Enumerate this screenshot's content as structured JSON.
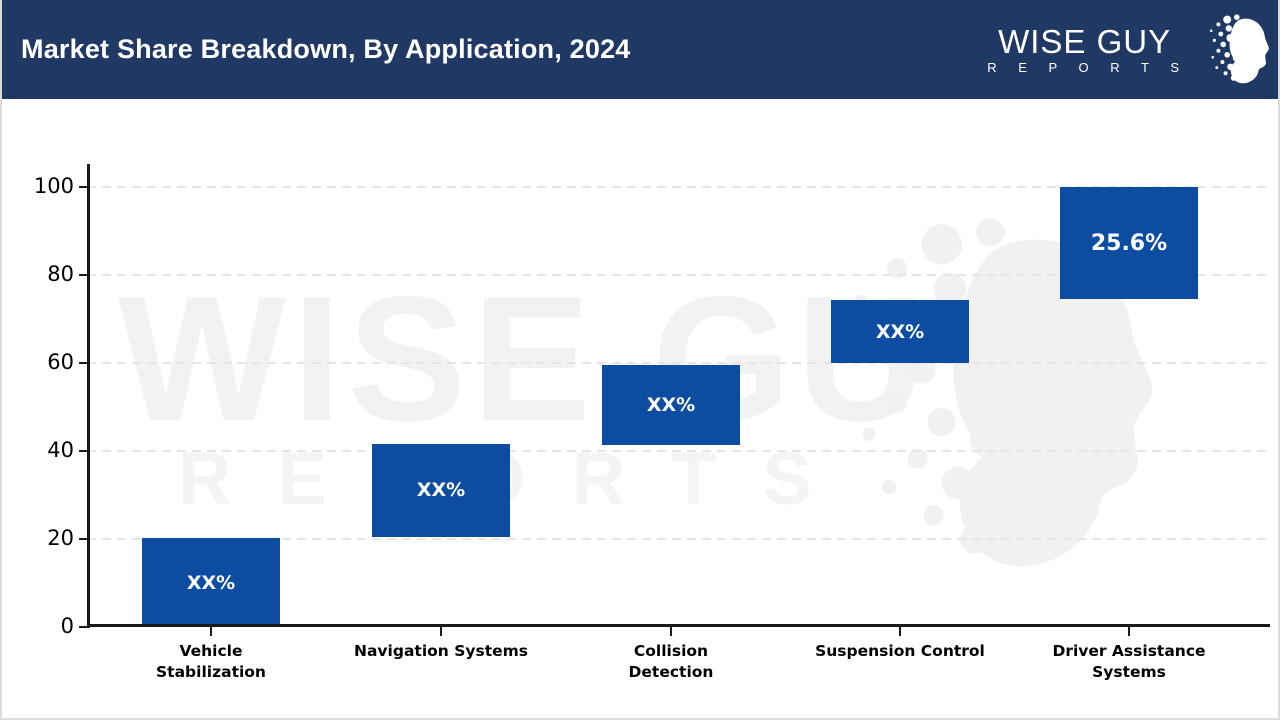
{
  "header": {
    "title": "Market Share Breakdown, By Application, 2024",
    "bg_color": "#203864",
    "logo": {
      "line1": "WISE GUY",
      "line2": "R E P O R T S"
    }
  },
  "watermark": {
    "line1": "WISE GUY",
    "line2": "REPORTS"
  },
  "chart_data": {
    "type": "bar",
    "subtype": "floating-waterfall",
    "title": "Market Share Breakdown, By Application, 2024",
    "xlabel": "",
    "ylabel": "",
    "ylim": [
      0,
      100
    ],
    "yticks": [
      0,
      20,
      40,
      60,
      80,
      100
    ],
    "grid": "horizontal-dashed",
    "bar_color": "#0c4da2",
    "bar_label_color": "#ffffff",
    "categories": [
      "Vehicle Stabilization",
      "Navigation Systems",
      "Collision Detection",
      "Suspension Control",
      "Driver Assistance Systems"
    ],
    "category_label_lines": [
      [
        "Vehicle",
        "Stabilization"
      ],
      [
        "Navigation Systems"
      ],
      [
        "Collision",
        "Detection"
      ],
      [
        "Suspension Control"
      ],
      [
        "Driver Assistance",
        "Systems"
      ]
    ],
    "segments": [
      {
        "category": "Vehicle Stabilization",
        "start": 0,
        "end": 20.2,
        "label": "XX%"
      },
      {
        "category": "Navigation Systems",
        "start": 20.5,
        "end": 41.6,
        "label": "XX%"
      },
      {
        "category": "Collision Detection",
        "start": 41.4,
        "end": 59.6,
        "label": "XX%"
      },
      {
        "category": "Suspension Control",
        "start": 60,
        "end": 74.3,
        "label": "XX%"
      },
      {
        "category": "Driver Assistance Systems",
        "start": 74.5,
        "end": 100,
        "label": "25.6%",
        "value": 25.6
      }
    ]
  }
}
